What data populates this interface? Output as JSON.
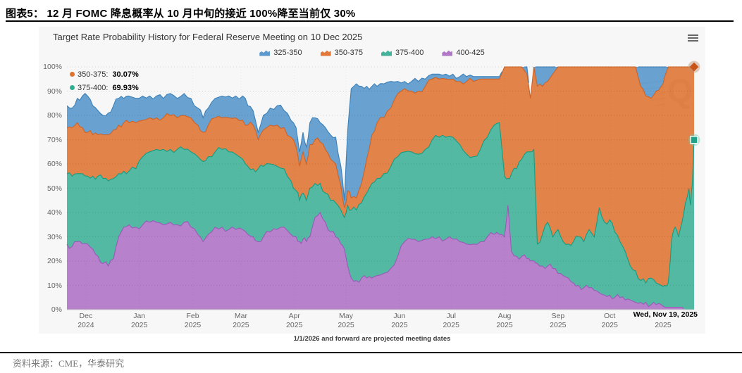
{
  "header": {
    "title": "图表5：  12 月 FOMC 降息概率从 10 月中旬的接近 100%降至当前仅 30%"
  },
  "footer": {
    "source": "资料来源：CME，华泰研究"
  },
  "chart": {
    "title": "Target Rate Probability History for Federal Reserve Meeting on 10 Dec 2025",
    "caption": "1/1/2026 and forward are projected meeting dates",
    "crosshair_label": "Wed, Nov 19, 2025",
    "watermark_letter": "Q",
    "menu_icon": "hamburger-menu-icon",
    "tooltip_rows": [
      {
        "label": "350-375:",
        "value": "30.07%",
        "color": "#e0722f"
      },
      {
        "label": "375-400:",
        "value": "69.93%",
        "color": "#2fae92"
      }
    ],
    "end_markers": [
      {
        "shape": "diamond",
        "value": 100,
        "color": "#c85417",
        "halo": "rgba(190,145,110,0.45)"
      },
      {
        "shape": "square",
        "value": 69.93,
        "color": "#1fa287",
        "halo": "rgba(110,200,175,0.45)"
      }
    ]
  },
  "chart_data": {
    "type": "area",
    "stacking": "percent-stacked",
    "title": "Target Rate Probability History for Federal Reserve Meeting on 10 Dec 2025",
    "xlabel": "",
    "ylabel": "",
    "ylim": [
      0,
      100
    ],
    "y_tick_step": 10,
    "y_tick_suffix": "%",
    "grid": "dotted",
    "legend_position": "top-center",
    "legend": [
      {
        "label": "325-350",
        "color": "#5c99cc"
      },
      {
        "label": "350-375",
        "color": "#e0793a"
      },
      {
        "label": "375-400",
        "color": "#45b39b"
      },
      {
        "label": "400-425",
        "color": "#b177c7"
      }
    ],
    "x": [
      "2024-11-20",
      "2024-11-23",
      "2024-11-26",
      "2024-11-29",
      "2024-12-02",
      "2024-12-05",
      "2024-12-08",
      "2024-12-11",
      "2024-12-14",
      "2024-12-17",
      "2024-12-20",
      "2024-12-23",
      "2024-12-26",
      "2024-12-30",
      "2025-01-03",
      "2025-01-07",
      "2025-01-11",
      "2025-01-15",
      "2025-01-19",
      "2025-01-23",
      "2025-01-27",
      "2025-01-31",
      "2025-02-04",
      "2025-02-07",
      "2025-02-10",
      "2025-02-14",
      "2025-02-18",
      "2025-02-22",
      "2025-02-26",
      "2025-03-02",
      "2025-03-05",
      "2025-03-08",
      "2025-03-11",
      "2025-03-14",
      "2025-03-18",
      "2025-03-22",
      "2025-03-26",
      "2025-03-30",
      "2025-04-02",
      "2025-04-04",
      "2025-04-06",
      "2025-04-08",
      "2025-04-10",
      "2025-04-13",
      "2025-04-16",
      "2025-04-19",
      "2025-04-22",
      "2025-04-25",
      "2025-04-28",
      "2025-04-30",
      "2025-05-02",
      "2025-05-04",
      "2025-05-07",
      "2025-05-10",
      "2025-05-13",
      "2025-05-16",
      "2025-05-19",
      "2025-05-23",
      "2025-05-27",
      "2025-05-31",
      "2025-06-04",
      "2025-06-08",
      "2025-06-12",
      "2025-06-16",
      "2025-06-20",
      "2025-06-24",
      "2025-06-28",
      "2025-07-02",
      "2025-07-06",
      "2025-07-10",
      "2025-07-14",
      "2025-07-18",
      "2025-07-22",
      "2025-07-26",
      "2025-07-29",
      "2025-08-01",
      "2025-08-03",
      "2025-08-05",
      "2025-08-08",
      "2025-08-11",
      "2025-08-14",
      "2025-08-16",
      "2025-08-18",
      "2025-08-20",
      "2025-08-23",
      "2025-08-26",
      "2025-08-29",
      "2025-09-01",
      "2025-09-04",
      "2025-09-07",
      "2025-09-10",
      "2025-09-13",
      "2025-09-16",
      "2025-09-19",
      "2025-09-22",
      "2025-09-25",
      "2025-09-28",
      "2025-10-01",
      "2025-10-04",
      "2025-10-07",
      "2025-10-10",
      "2025-10-13",
      "2025-10-16",
      "2025-10-19",
      "2025-10-22",
      "2025-10-25",
      "2025-10-28",
      "2025-10-31",
      "2025-11-02",
      "2025-11-04",
      "2025-11-06",
      "2025-11-08",
      "2025-11-10",
      "2025-11-12",
      "2025-11-14",
      "2025-11-16",
      "2025-11-17",
      "2025-11-18",
      "2025-11-19"
    ],
    "series": [
      {
        "name": "400-425",
        "color": "#b177c7",
        "line": "#9a5ab8",
        "values": [
          27,
          26,
          28,
          27,
          27,
          25,
          22,
          19,
          18,
          21,
          30,
          34,
          35,
          34,
          35,
          36,
          36,
          35,
          36,
          35,
          36,
          34,
          31,
          28,
          31,
          34,
          34,
          33,
          33,
          33,
          31,
          30,
          28,
          30,
          32,
          33,
          34,
          31,
          30,
          28,
          29,
          28,
          30,
          38,
          40,
          36,
          32,
          30,
          27,
          25,
          18,
          13,
          12,
          13,
          13,
          13,
          14,
          15,
          17,
          22,
          28,
          29,
          28,
          29,
          30,
          30,
          29,
          29,
          28,
          27,
          27,
          28,
          30,
          31,
          31,
          30,
          43,
          24,
          22,
          22,
          21,
          20,
          20,
          19,
          18,
          18,
          17,
          15,
          14,
          13,
          11,
          10,
          9,
          9,
          8,
          7,
          6,
          6,
          5,
          5,
          4,
          4,
          3,
          3,
          3,
          2,
          2,
          2,
          1,
          1,
          1,
          1,
          1,
          1,
          0,
          0,
          0,
          0,
          0
        ]
      },
      {
        "name": "375-400",
        "color": "#45b39b",
        "line": "#159c82",
        "values": [
          29,
          29,
          28,
          29,
          28,
          30,
          33,
          35,
          35,
          33,
          26,
          23,
          22,
          24,
          28,
          29,
          30,
          31,
          30,
          31,
          30,
          31,
          32,
          33,
          32,
          31,
          32,
          32,
          31,
          29,
          28,
          28,
          30,
          29,
          28,
          26,
          24,
          22,
          19,
          17,
          19,
          17,
          20,
          14,
          12,
          12,
          13,
          14,
          14,
          13,
          25,
          28,
          29,
          31,
          35,
          39,
          40,
          41,
          42,
          41,
          37,
          36,
          36,
          37,
          40,
          41,
          42,
          42,
          40,
          37,
          36,
          38,
          41,
          45,
          46,
          25,
          11,
          32,
          36,
          40,
          44,
          45,
          46,
          8,
          13,
          18,
          13,
          18,
          14,
          14,
          17,
          20,
          19,
          24,
          22,
          35,
          30,
          31,
          27,
          23,
          20,
          14,
          13,
          9,
          8,
          11,
          9,
          8,
          9,
          10,
          28,
          33,
          29,
          35,
          44,
          50,
          43,
          52,
          69.93
        ]
      },
      {
        "name": "350-375",
        "color": "#e0793a",
        "line": "#cf6325",
        "values": [
          19,
          20,
          21,
          19,
          18,
          17,
          17,
          18,
          19,
          20,
          20,
          20,
          20,
          19,
          15,
          14,
          13,
          13,
          14,
          13,
          14,
          14,
          13,
          12,
          13,
          14,
          13,
          14,
          15,
          16,
          17,
          18,
          12,
          15,
          16,
          17,
          17,
          18,
          18,
          14,
          17,
          15,
          18,
          18,
          17,
          18,
          17,
          16,
          10,
          4,
          6,
          5,
          5,
          8,
          14,
          20,
          23,
          23,
          24,
          26,
          26,
          25,
          26,
          26,
          25,
          24,
          24,
          24,
          26,
          30,
          31,
          29,
          24,
          19,
          18,
          45,
          46,
          44,
          42,
          38,
          32,
          22,
          34,
          65,
          61,
          58,
          67,
          67,
          72,
          73,
          72,
          70,
          72,
          67,
          70,
          58,
          64,
          63,
          68,
          72,
          76,
          82,
          84,
          80,
          77,
          74,
          79,
          82,
          86,
          89,
          71,
          66,
          70,
          64,
          56,
          50,
          57,
          48,
          30.07
        ]
      },
      {
        "name": "325-350",
        "color": "#5c99cc",
        "line": "#3c80b8",
        "values": [
          9,
          8,
          10,
          13,
          15,
          12,
          10,
          8,
          9,
          10,
          11,
          10,
          11,
          10,
          10,
          9,
          9,
          8,
          9,
          8,
          9,
          8,
          7,
          6,
          7,
          8,
          9,
          9,
          9,
          10,
          8,
          6,
          3,
          6,
          7,
          8,
          7,
          7,
          8,
          6,
          8,
          7,
          9,
          9,
          8,
          9,
          10,
          11,
          8,
          3,
          25,
          45,
          47,
          40,
          30,
          20,
          15,
          14,
          11,
          5,
          3,
          4,
          4,
          3,
          2,
          2,
          2,
          2,
          2,
          2,
          2,
          1,
          1,
          1,
          1,
          0,
          0,
          0,
          0,
          0,
          3,
          0,
          0,
          8,
          8,
          6,
          3,
          0,
          0,
          0,
          0,
          0,
          0,
          0,
          0,
          0,
          0,
          0,
          0,
          0,
          0,
          0,
          0,
          8,
          12,
          13,
          10,
          8,
          4,
          0,
          0,
          0,
          0,
          0,
          0,
          0,
          0,
          0,
          0
        ]
      }
    ]
  }
}
